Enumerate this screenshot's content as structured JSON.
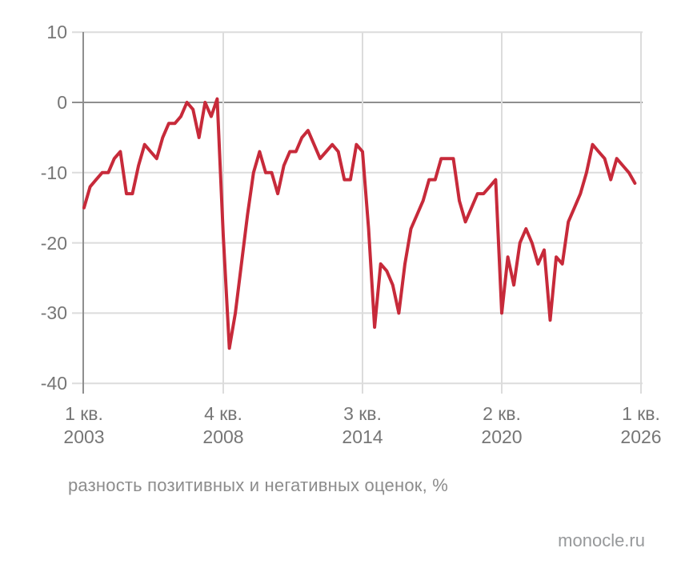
{
  "chart": {
    "caption": "разность позитивных и негативных оценок, %",
    "source": "monocle.ru",
    "colors": {
      "line": "#c72a3a",
      "grid": "#dcdcdc",
      "zero_line": "#8f8f8f",
      "axis": "#8f8f8f",
      "tick_text": "#767676",
      "caption_text": "#8c8c8c",
      "source_text": "#97999b",
      "background": "#ffffff"
    }
  },
  "chart_data": {
    "type": "line",
    "title": "",
    "xlabel": "",
    "ylabel": "разность позитивных и негативных оценок, %",
    "ylim": [
      -40,
      10
    ],
    "grid": true,
    "legend_position": "none",
    "frequency": "quarterly",
    "x_start": "1 кв. 2003",
    "x_end": "4 кв. 2025",
    "y_ticks": [
      {
        "value": 10,
        "label": "10"
      },
      {
        "value": 0,
        "label": "0"
      },
      {
        "value": -10,
        "label": "-10"
      },
      {
        "value": -20,
        "label": "-20"
      },
      {
        "value": -30,
        "label": "-30"
      },
      {
        "value": -40,
        "label": "-40"
      }
    ],
    "x_ticks": [
      {
        "quarter_index": 0,
        "label_line1": "1 кв.",
        "label_line2": "2003"
      },
      {
        "quarter_index": 23,
        "label_line1": "4 кв.",
        "label_line2": "2008"
      },
      {
        "quarter_index": 46,
        "label_line1": "3 кв.",
        "label_line2": "2014"
      },
      {
        "quarter_index": 69,
        "label_line1": "2 кв.",
        "label_line2": "2020"
      },
      {
        "quarter_index": 92,
        "label_line1": "1 кв.",
        "label_line2": "2026"
      }
    ],
    "series": [
      {
        "name": "разность позитивных и негативных оценок, %",
        "color": "#c72a3a",
        "start_quarter": "2003-Q1",
        "values": [
          -15,
          -12,
          -11,
          -10,
          -10,
          -8,
          -7,
          -13,
          -13,
          -9,
          -6,
          -7,
          -8,
          -5,
          -3,
          -3,
          -2,
          0,
          -1,
          -5,
          0,
          -2,
          0.5,
          -19,
          -35,
          -30,
          -23,
          -16,
          -10,
          -7,
          -10,
          -10,
          -13,
          -9,
          -7,
          -7,
          -5,
          -4,
          -6,
          -8,
          -7,
          -6,
          -7,
          -11,
          -11,
          -6,
          -7,
          -18,
          -32,
          -23,
          -24,
          -26,
          -30,
          -23,
          -18,
          -16,
          -14,
          -11,
          -11,
          -8,
          -8,
          -8,
          -14,
          -17,
          -15,
          -13,
          -13,
          -12,
          -11,
          -30,
          -22,
          -26,
          -20,
          -18,
          -20,
          -23,
          -21,
          -31,
          -22,
          -23,
          -17,
          -15,
          -13,
          -10,
          -6,
          -7,
          -8,
          -11,
          -8,
          -9,
          -10,
          -11.5
        ]
      }
    ]
  }
}
